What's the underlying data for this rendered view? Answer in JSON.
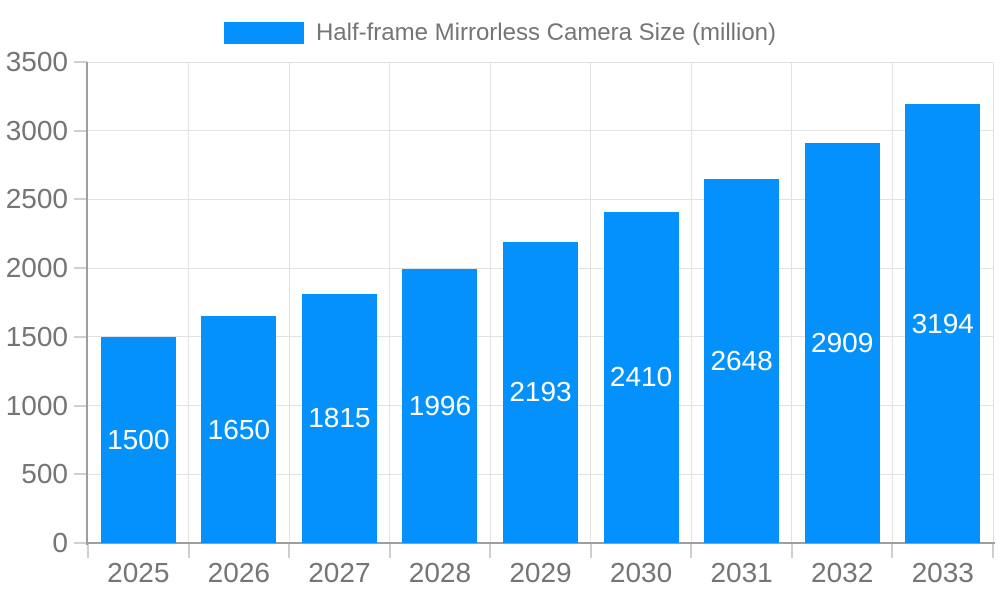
{
  "legend": {
    "label": "Half-frame Mirrorless Camera Size (million)"
  },
  "chart_data": {
    "type": "bar",
    "title": "Half-frame Mirrorless Camera Size (million)",
    "categories": [
      "2025",
      "2026",
      "2027",
      "2028",
      "2029",
      "2030",
      "2031",
      "2032",
      "2033"
    ],
    "values": [
      1500,
      1650,
      1815,
      1996,
      2193,
      2410,
      2648,
      2909,
      3194
    ],
    "xlabel": "",
    "ylabel": "",
    "ylim": [
      0,
      3500
    ],
    "yticks": [
      0,
      500,
      1000,
      1500,
      2000,
      2500,
      3000,
      3500
    ],
    "grid": true,
    "bar_value_labels_inside": true,
    "legend_position": "top-center",
    "colors": {
      "bar": "#0591fb",
      "bar_label": "#ffffff",
      "axis_text": "#757575",
      "legend_text": "#757575",
      "grid_line": "#e2e2e2",
      "tick_line": "#cfcfcf",
      "axis_line": "#9e9e9e",
      "background": "#ffffff"
    }
  }
}
